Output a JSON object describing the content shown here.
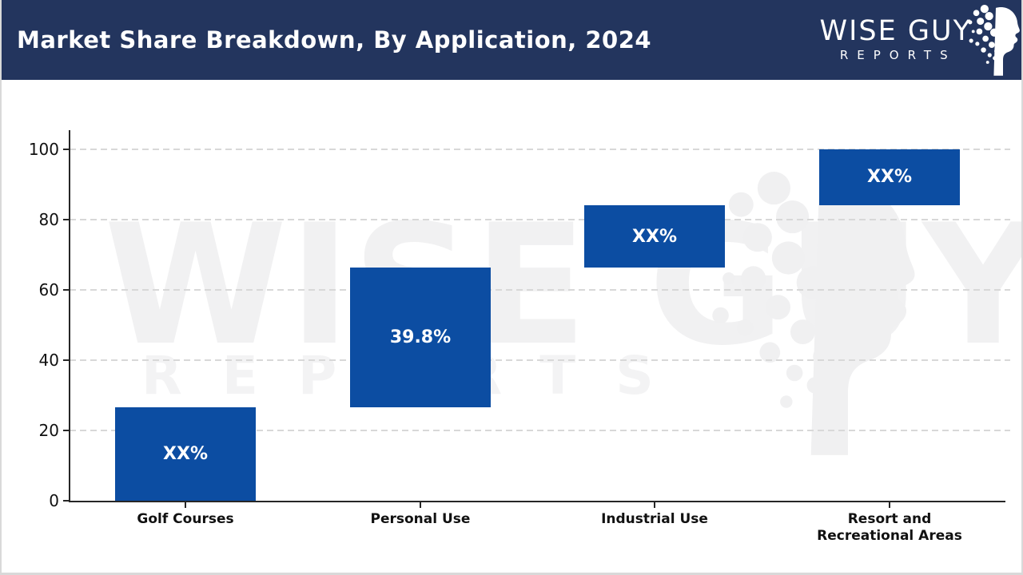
{
  "header": {
    "title": "Market Share Breakdown, By Application, 2024",
    "logo": {
      "line1": "WISE GUY",
      "line2": "REPORTS"
    }
  },
  "watermark": {
    "line1": "WISE GUY",
    "line2": "REPORTS"
  },
  "chart_data": {
    "type": "bar",
    "subtype": "waterfall-floating-bars",
    "title": "Market Share Breakdown, By Application, 2024",
    "categories": [
      "Golf Courses",
      "Personal Use",
      "Industrial Use",
      "Resort and\nRecreational Areas"
    ],
    "segments": [
      {
        "label": "Golf Courses",
        "start": 0,
        "end": 26.5,
        "text": "XX%"
      },
      {
        "label": "Personal Use",
        "start": 26.5,
        "end": 66.3,
        "text": "39.8%"
      },
      {
        "label": "Industrial Use",
        "start": 66.3,
        "end": 84.1,
        "text": "XX%"
      },
      {
        "label": "Resort and Recreational Areas",
        "start": 84.1,
        "end": 100,
        "text": "XX%"
      }
    ],
    "yticks": [
      "0",
      "20",
      "40",
      "60",
      "80",
      "100"
    ],
    "ylim": [
      0,
      105
    ],
    "xlabel": "",
    "ylabel": "",
    "grid": "horizontal-dashed",
    "legend": "none",
    "bar_color": "#0c4da2",
    "bar_label_color": "#ffffff"
  },
  "colors": {
    "header_bg": "#23355e",
    "bar": "#0c4da2",
    "grid": "#d8d8d8",
    "axis": "#262626",
    "watermark": "#f1f1f2",
    "page_border": "#d9d9d9"
  }
}
